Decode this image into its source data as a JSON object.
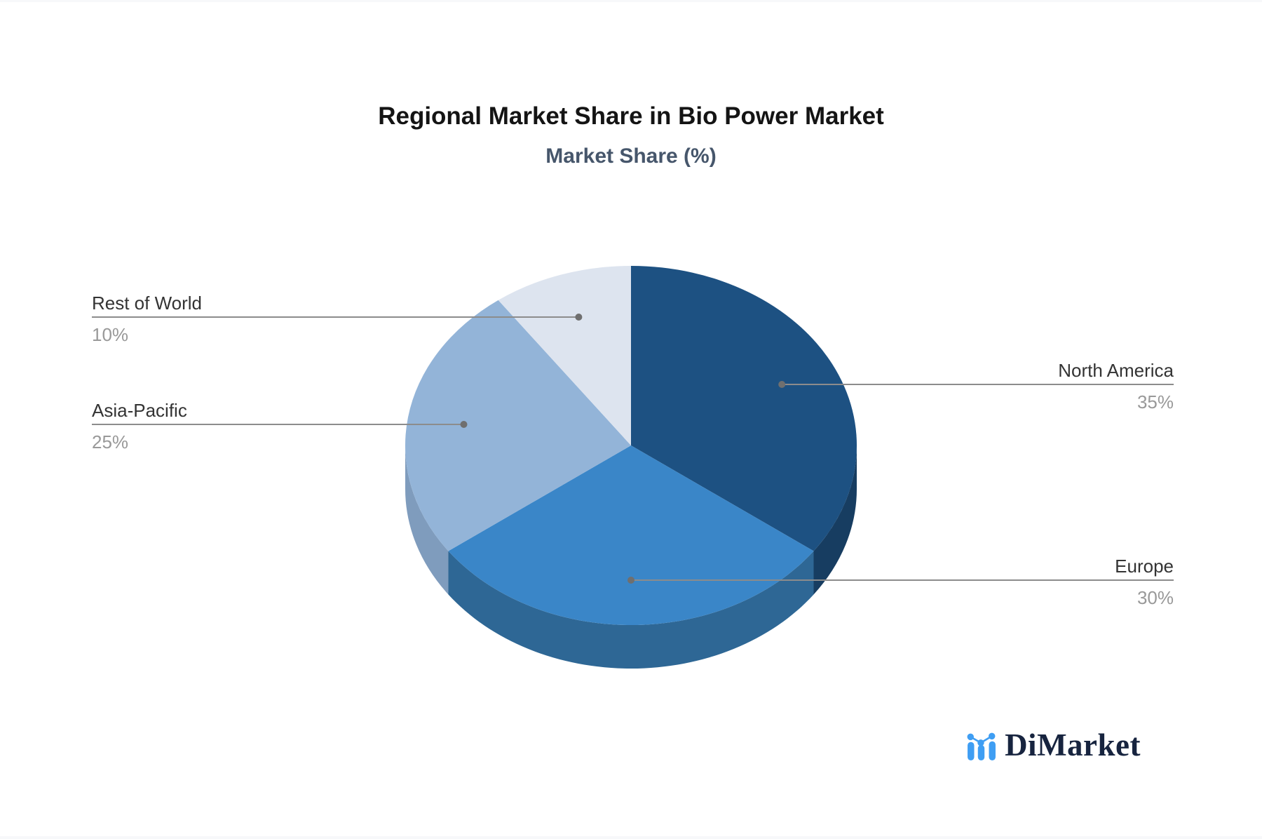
{
  "header": {
    "title": "Regional Market Share in Bio Power Market",
    "subtitle": "Market Share (%)"
  },
  "chart_data": {
    "type": "pie",
    "title": "Regional Market Share in Bio Power Market",
    "subtitle": "Market Share (%)",
    "unit": "%",
    "effect_3d": true,
    "direction": "clockwise",
    "start_angle_deg": 0,
    "categories": [
      "North America",
      "Europe",
      "Asia-Pacific",
      "Rest of World"
    ],
    "values": [
      35,
      30,
      25,
      10
    ],
    "value_labels": [
      "35%",
      "30%",
      "25%",
      "10%"
    ],
    "slice_colors": [
      "#1d5182",
      "#3a86c8",
      "#93b4d8",
      "#dde4ef"
    ],
    "rim_colors": [
      "#173d61",
      "#2e6795",
      "#7f9cbd",
      "#c9d2e0"
    ],
    "label_side": [
      "right",
      "right",
      "left",
      "left"
    ],
    "leader_line_color": "#8c8c8c",
    "leader_dot_color": "#6f6f6f",
    "label_name_color": "#333333",
    "label_value_color": "#999999",
    "title_color": "#141414",
    "subtitle_color": "#46566b",
    "legend": "none",
    "background": "#ffffff"
  },
  "branding": {
    "logo_text": "DiMarket",
    "logo_icon": "bar-chart-with-trend-dots-icon",
    "logo_text_color": "#17243f",
    "logo_accent_color": "#3f9ef3"
  }
}
